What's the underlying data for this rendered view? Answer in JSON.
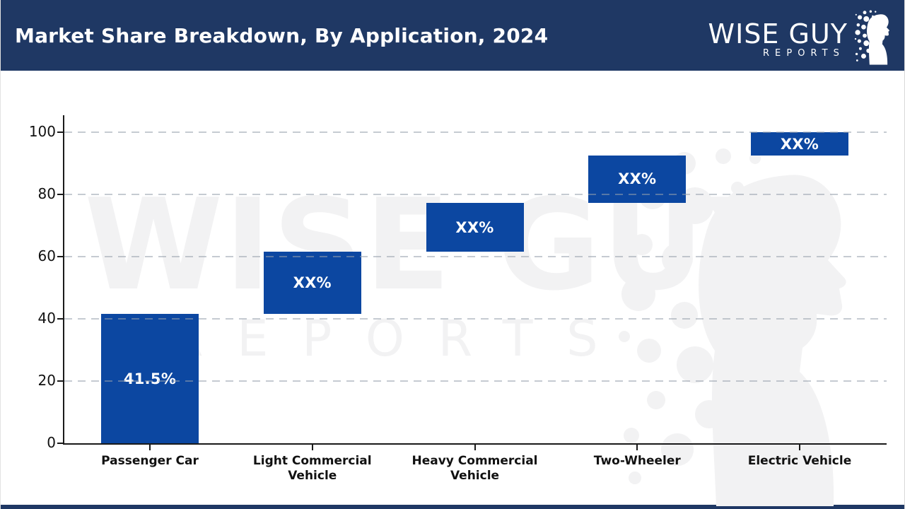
{
  "header": {
    "title": "Market Share Breakdown, By Application, 2024",
    "logo": {
      "wordmark": "WISE GUY",
      "subtext": "REPORTS",
      "icon": "dotted-face-profile"
    }
  },
  "watermark": {
    "line1": "WISE GUY",
    "line2": "REPORTS",
    "icon": "dotted-face-profile"
  },
  "colors": {
    "header_bg": "#1F3864",
    "footer_bg": "#1F3864",
    "bar_fill": "#0C47A1",
    "bar_label_text": "#FFFFFF",
    "axis": "#1A1A1A",
    "tick_label_text": "#111111",
    "gridline": "#D8DCE0",
    "watermark_text": "#F2F2F3",
    "background": "#FFFFFF"
  },
  "chart_data": {
    "type": "bar",
    "variant": "stepped-waterfall",
    "title": "Market Share Breakdown, By Application, 2024",
    "categories": [
      "Passenger Car",
      "Light Commercial Vehicle",
      "Heavy Commercial Vehicle",
      "Two-Wheeler",
      "Electric Vehicle"
    ],
    "series": [
      {
        "name": "Market share (%)",
        "segments": [
          {
            "category": "Passenger Car",
            "start": 0,
            "end": 41.5,
            "label": "41.5%"
          },
          {
            "category": "Light Commercial Vehicle",
            "start": 41.5,
            "end": 61.5,
            "label": "XX%"
          },
          {
            "category": "Heavy Commercial Vehicle",
            "start": 61.5,
            "end": 77.3,
            "label": "XX%"
          },
          {
            "category": "Two-Wheeler",
            "start": 77.3,
            "end": 92.5,
            "label": "XX%"
          },
          {
            "category": "Electric Vehicle",
            "start": 92.5,
            "end": 100,
            "label": "XX%"
          }
        ]
      }
    ],
    "yticks": [
      0,
      20,
      40,
      60,
      80,
      100
    ],
    "ylim": [
      0,
      105
    ],
    "xlabel": "",
    "ylabel": "",
    "grid": "horizontal-dashed",
    "legend": "none"
  }
}
